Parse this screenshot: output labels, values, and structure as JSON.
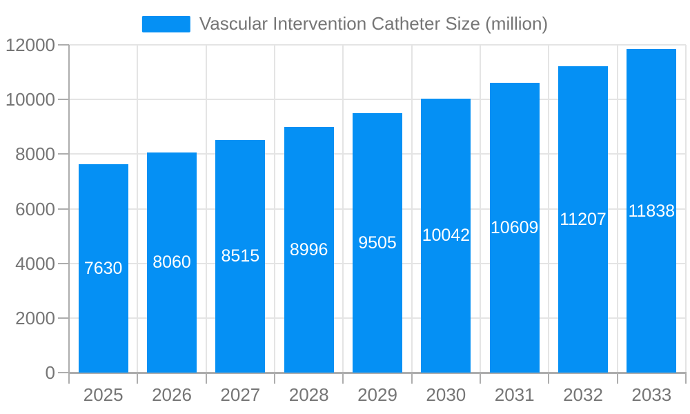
{
  "legend": {
    "label": "Vascular Intervention Catheter Size (million)"
  },
  "chart_data": {
    "type": "bar",
    "title": "Vascular Intervention Catheter Size (million)",
    "categories": [
      "2025",
      "2026",
      "2027",
      "2028",
      "2029",
      "2030",
      "2031",
      "2032",
      "2033"
    ],
    "series": [
      {
        "name": "Vascular Intervention Catheter Size (million)",
        "values": [
          7630,
          8060,
          8515,
          8996,
          9505,
          10042,
          10609,
          11207,
          11838
        ]
      }
    ],
    "data_labels": [
      "7630",
      "8060",
      "8515",
      "8996",
      "9505",
      "10042",
      "10609",
      "11207",
      "11838"
    ],
    "xlabel": "",
    "ylabel": "",
    "ylim": [
      0,
      12000
    ],
    "y_ticks": [
      0,
      2000,
      4000,
      6000,
      8000,
      10000,
      12000
    ],
    "grid": "on",
    "legend_position": "top-center",
    "colors": {
      "bar": "#0590F4",
      "bar_label_text": "#FFFFFF",
      "grid_line": "#E4E4E4",
      "axis_line": "#ADADAD",
      "axis_text": "#757575",
      "legend_text": "#757575",
      "background": "#FFFFFF"
    }
  }
}
